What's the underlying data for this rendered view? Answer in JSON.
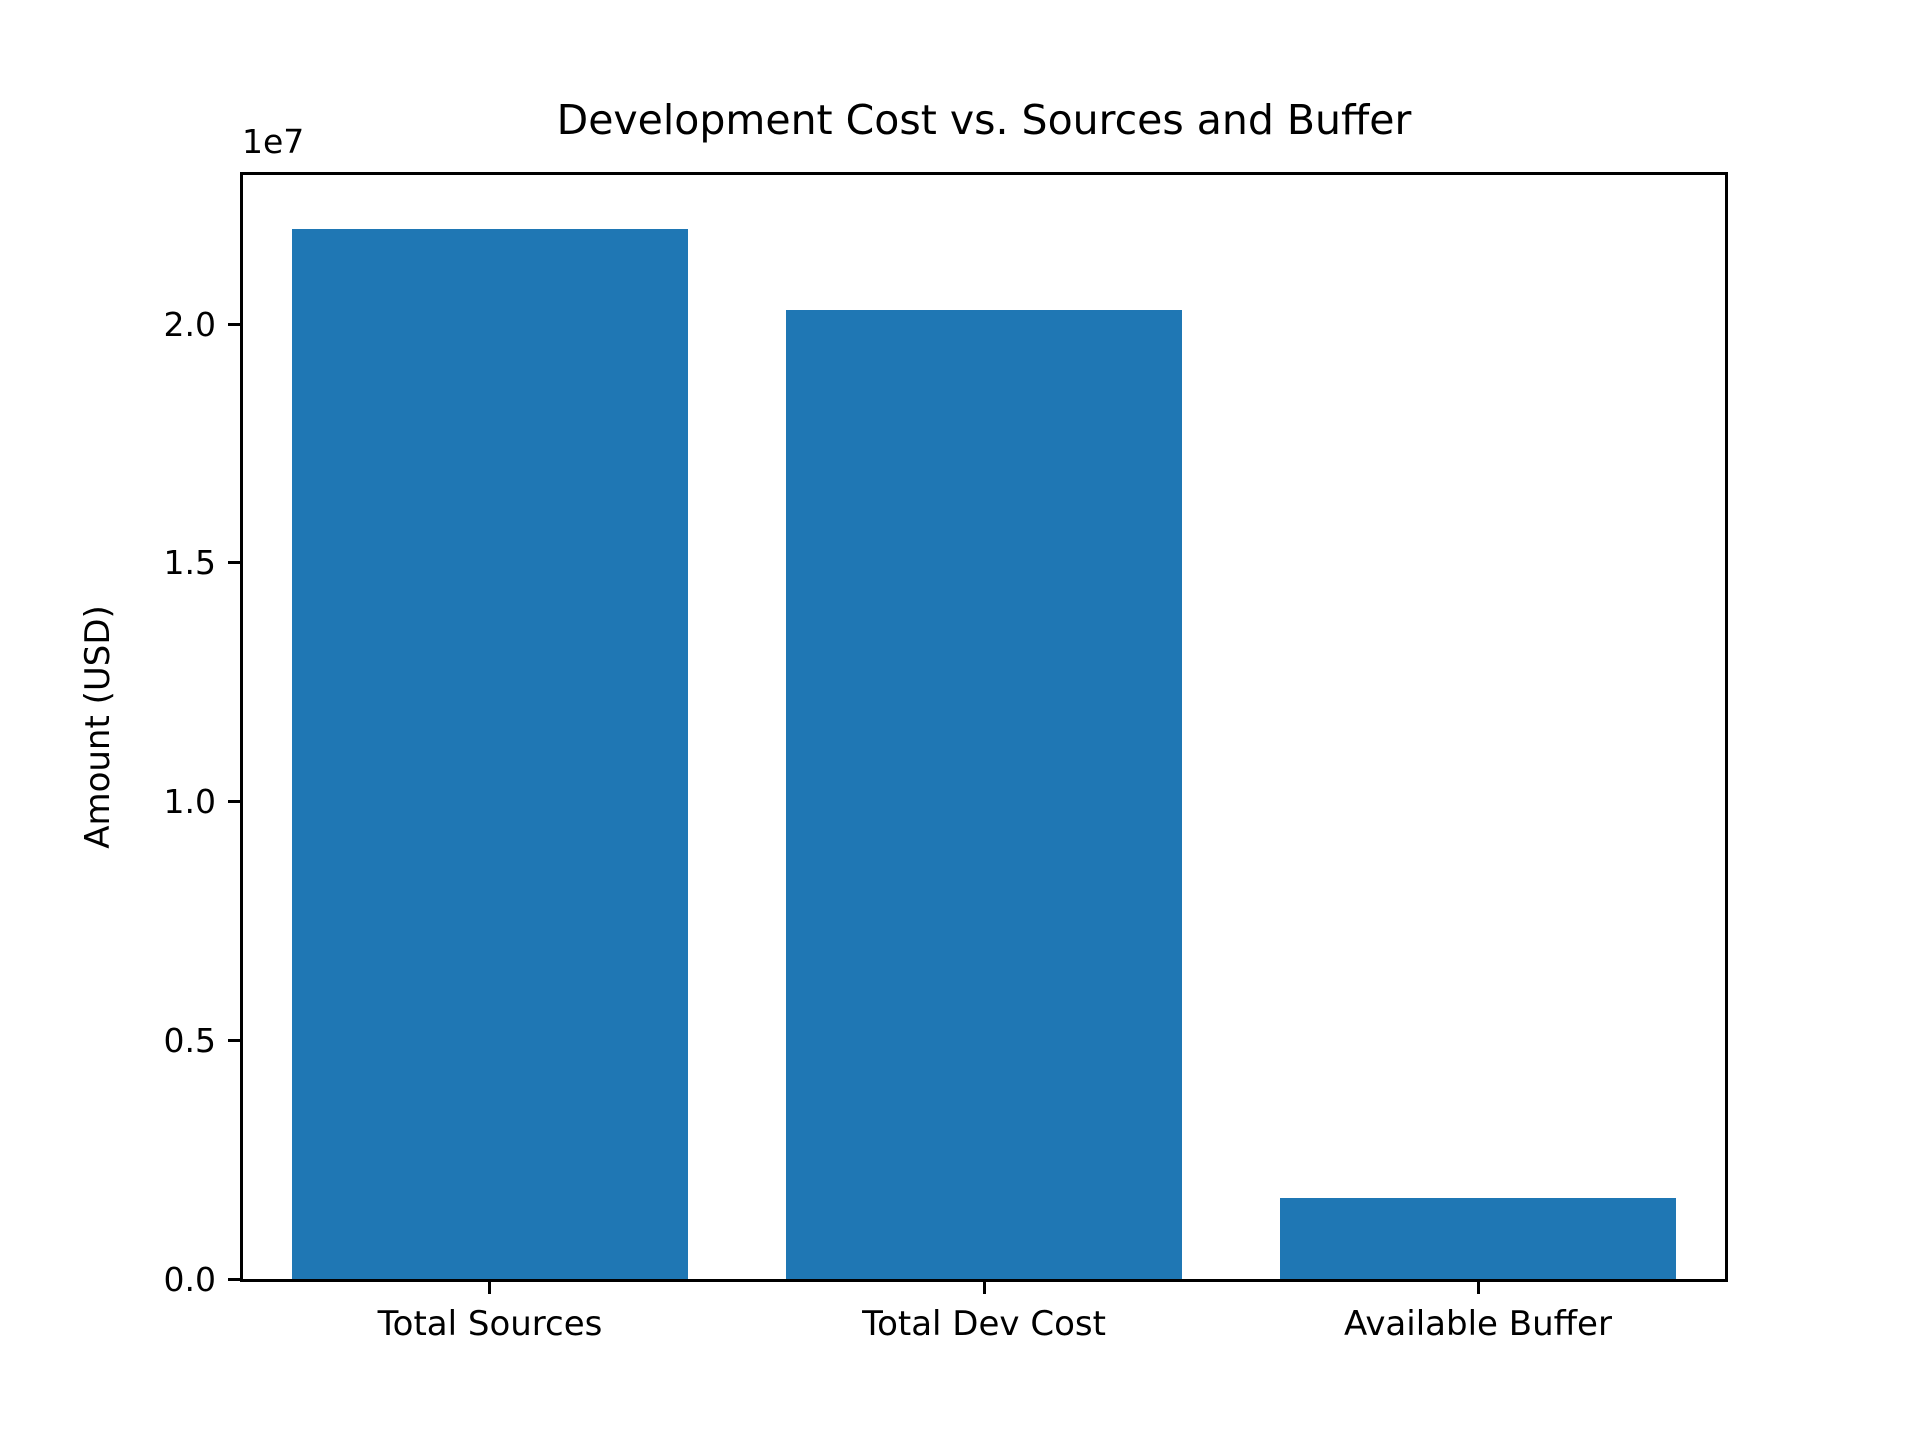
{
  "chart_data": {
    "type": "bar",
    "title": "Development Cost vs. Sources and Buffer",
    "xlabel": "",
    "ylabel": "Amount (USD)",
    "y_offset_label": "1e7",
    "categories": [
      "Total Sources",
      "Total Dev Cost",
      "Available Buffer"
    ],
    "values": [
      22000000,
      20300000,
      1700000
    ],
    "bar_color": "#1f77b4",
    "bar_width_fraction": 0.8,
    "ylim": [
      0,
      23125000
    ],
    "y_ticks": [
      {
        "label": "0.0",
        "value": 0
      },
      {
        "label": "0.5",
        "value": 5000000
      },
      {
        "label": "1.0",
        "value": 10000000
      },
      {
        "label": "1.5",
        "value": 15000000
      },
      {
        "label": "2.0",
        "value": 20000000
      }
    ],
    "grid": false,
    "legend": false
  }
}
